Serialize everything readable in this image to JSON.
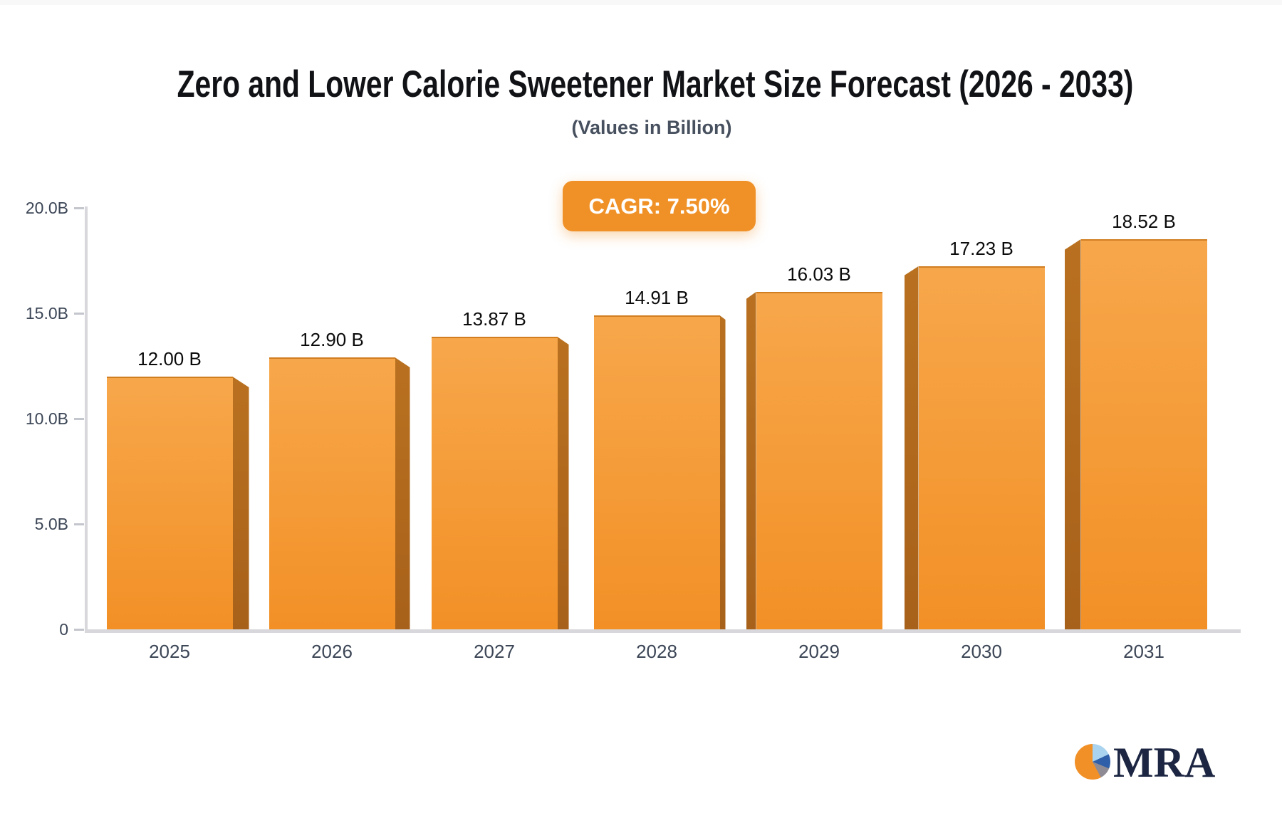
{
  "chart_data": {
    "type": "bar",
    "title": "Zero and Lower Calorie Sweetener Market Size Forecast (2026 - 2033)",
    "subtitle": "(Values in Billion)",
    "badge_label": "CAGR: 7.50%",
    "cagr_percent": "7.50%",
    "categories": [
      "2025",
      "2026",
      "2027",
      "2028",
      "2029",
      "2030",
      "2031"
    ],
    "values": [
      12.0,
      12.9,
      13.87,
      14.91,
      16.03,
      17.23,
      18.52
    ],
    "value_labels": [
      "12.00 B",
      "12.90 B",
      "13.87 B",
      "14.91 B",
      "16.03 B",
      "17.23 B",
      "18.52 B"
    ],
    "ylim": [
      0,
      20
    ],
    "yticks": [
      {
        "value": 20,
        "label": "20.0B"
      },
      {
        "value": 15,
        "label": "15.0B"
      },
      {
        "value": 10,
        "label": "10.0B"
      },
      {
        "value": 5,
        "label": "5.0B"
      },
      {
        "value": 0,
        "label": "0"
      }
    ],
    "grid": false,
    "legend_position": "none",
    "colors": {
      "bar_face_top": "#f7a74b",
      "bar_face_bottom": "#f29026",
      "bar_face_edge": "#c98434",
      "bar_side": "#b97120",
      "badge_bg": "#f09127",
      "axis_line": "#d8d8dc",
      "tick_dash": "#c3c6cc",
      "value_label": "#0b0b0b",
      "axis_label": "#3c4656",
      "title": "#101216",
      "subtitle": "#47505e"
    }
  },
  "branding": {
    "logo_text": "MRA",
    "pie_colors": {
      "orange": "#f19027",
      "light_blue": "#a9d3ee",
      "blue": "#2f5fa8",
      "gray": "#8e8b94"
    }
  }
}
